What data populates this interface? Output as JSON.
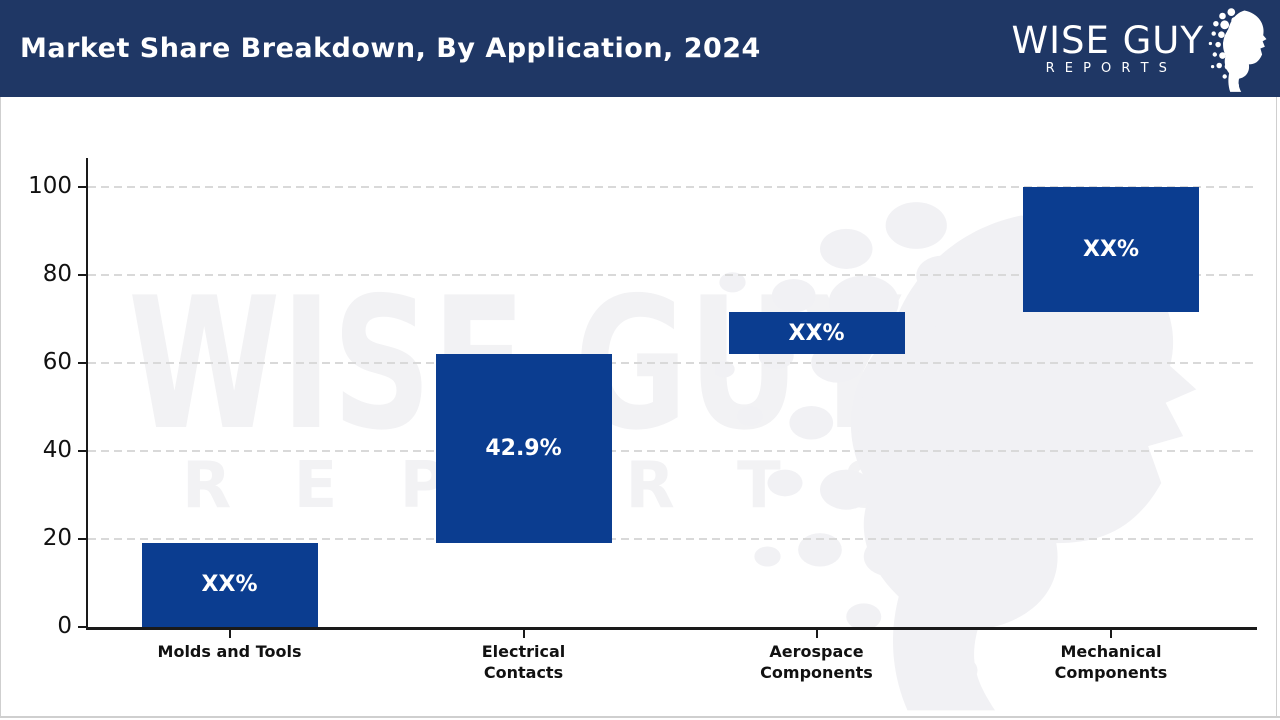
{
  "header": {
    "title": "Market Share Breakdown, By Application, 2024",
    "logo": {
      "line1": "WISE GUY",
      "line2": "R E P O R T S"
    },
    "bg_color": "#1f3765"
  },
  "watermark": {
    "line1": "WISE GUY",
    "line2": "R E P O R T S"
  },
  "chart_data": {
    "type": "bar",
    "subtype": "waterfall",
    "title": "Market Share Breakdown, By Application, 2024",
    "categories": [
      "Molds and Tools",
      "Electrical Contacts",
      "Aerospace Components",
      "Mechanical Components"
    ],
    "segments": [
      {
        "category": "Molds and Tools",
        "label_lines": [
          "Molds and Tools"
        ],
        "start": 0,
        "end": 19.1,
        "value_label": "XX%"
      },
      {
        "category": "Electrical Contacts",
        "label_lines": [
          "Electrical",
          "Contacts"
        ],
        "start": 19.1,
        "end": 62,
        "value_label": "42.9%"
      },
      {
        "category": "Aerospace Components",
        "label_lines": [
          "Aerospace",
          "Components"
        ],
        "start": 62,
        "end": 71.5,
        "value_label": "XX%"
      },
      {
        "category": "Mechanical Components",
        "label_lines": [
          "Mechanical",
          "Components"
        ],
        "start": 71.5,
        "end": 100,
        "value_label": "XX%"
      }
    ],
    "ylim": [
      0,
      100
    ],
    "yticks": [
      0,
      20,
      40,
      60,
      80,
      100
    ],
    "xlabel": "",
    "ylabel": "",
    "legend": "none",
    "grid": "horizontal-dashed",
    "bar_color": "#0b3d90",
    "bar_label_color": "#ffffff",
    "axis_color": "#1a1a1a",
    "gridline_color": "#d9d9d9",
    "tick_label_color": "#111111"
  }
}
